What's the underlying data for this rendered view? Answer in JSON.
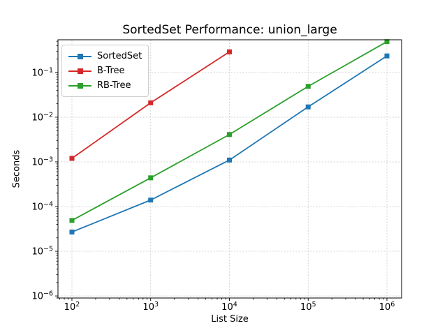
{
  "chart_data": {
    "type": "line",
    "title": "SortedSet Performance: union_large",
    "xlabel": "List Size",
    "ylabel": "Seconds",
    "x_scale": "log",
    "y_scale": "log",
    "grid": true,
    "grid_color": "#c8c8c8",
    "legend_position": "upper left",
    "xlim": [
      66.5,
      1536000
    ],
    "ylim": [
      9e-07,
      0.54
    ],
    "x_tick_exponents": [
      2,
      3,
      4,
      5,
      6
    ],
    "y_tick_exponents": [
      -1,
      -2,
      -3,
      -4,
      -5,
      -6
    ],
    "series": [
      {
        "name": "SortedSet",
        "color": "#1f77b4",
        "marker": "square",
        "x": [
          100,
          1000,
          10000,
          100000,
          1000000
        ],
        "y": [
          2.7e-05,
          0.00014,
          0.0011,
          0.017,
          0.235
        ]
      },
      {
        "name": "B-Tree",
        "color": "#d62728",
        "marker": "square",
        "x": [
          100,
          1000,
          10000
        ],
        "y": [
          0.0012,
          0.021,
          0.29
        ]
      },
      {
        "name": "RB-Tree",
        "color": "#2ca02c",
        "marker": "square",
        "x": [
          100,
          1000,
          10000,
          100000,
          1000000
        ],
        "y": [
          4.9e-05,
          0.00044,
          0.0041,
          0.049,
          0.49
        ]
      }
    ]
  }
}
